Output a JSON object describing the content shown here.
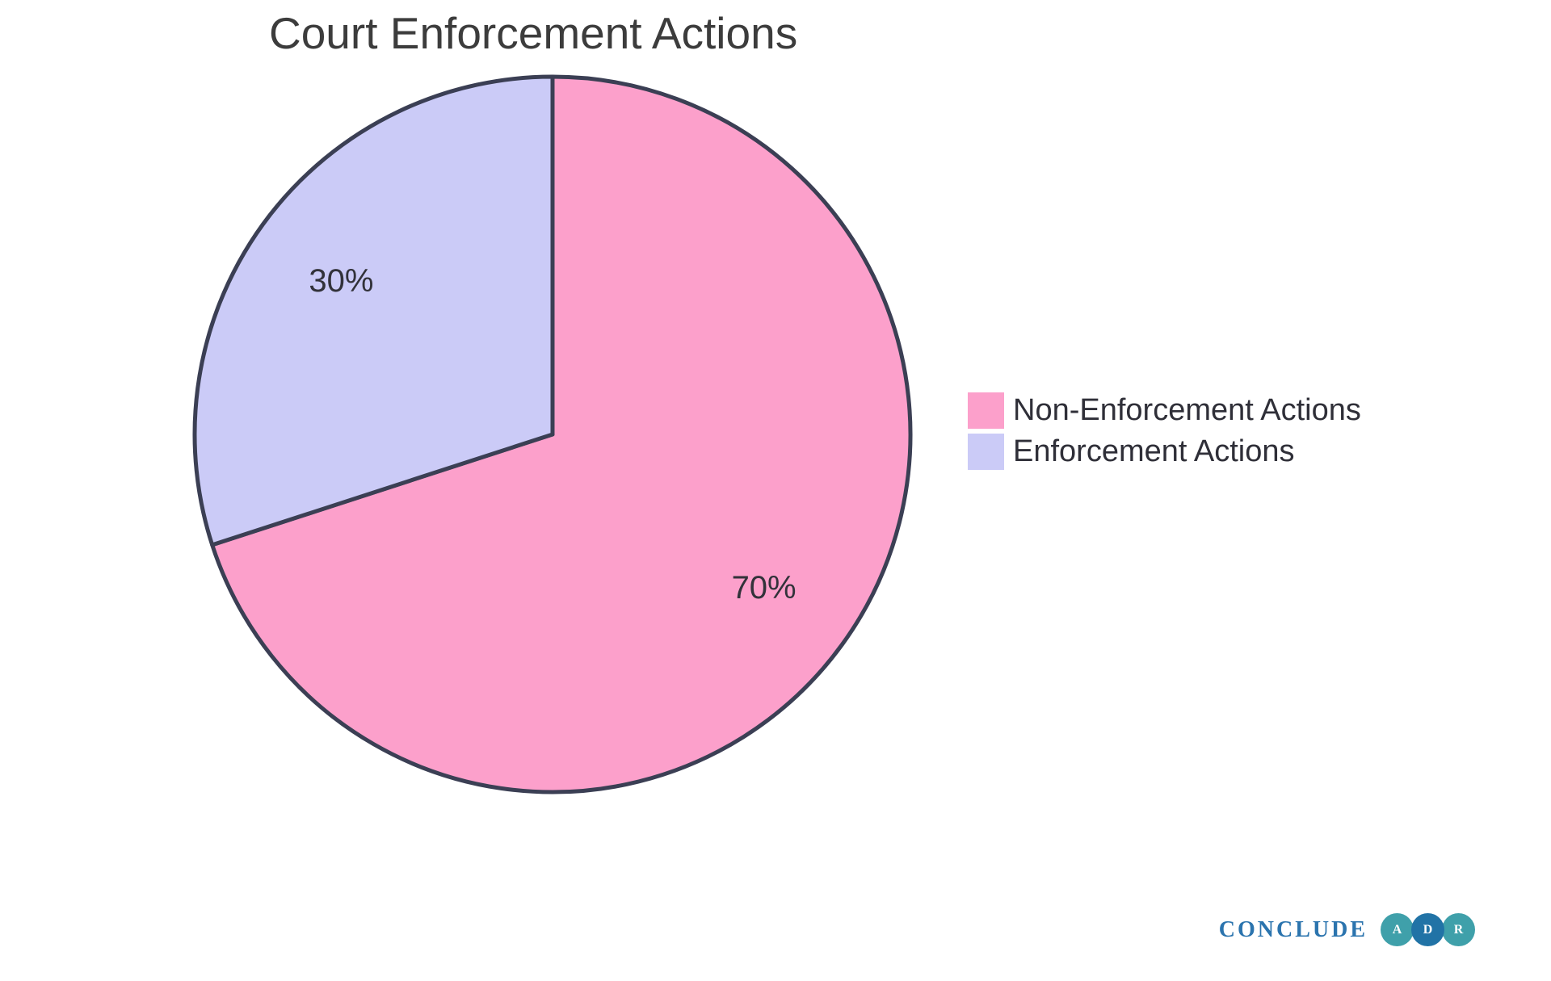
{
  "title": "Court Enforcement Actions",
  "chart_data": {
    "type": "pie",
    "title": "Court Enforcement Actions",
    "labels": [
      "Non-Enforcement Actions",
      "Enforcement Actions"
    ],
    "values": [
      70,
      30
    ],
    "percent_labels": [
      "70%",
      "30%"
    ],
    "colors": [
      "#FCA0CB",
      "#CBCBF7"
    ],
    "outline_color": "#3B3F54",
    "outline_width": 5,
    "start_angle": "top",
    "direction": "clockwise",
    "legend_position": "right",
    "background": "#ffffff"
  },
  "legend": {
    "items": [
      {
        "label": "Non-Enforcement Actions",
        "color": "#FCA0CB"
      },
      {
        "label": "Enforcement Actions",
        "color": "#CBCBF7"
      }
    ]
  },
  "branding": {
    "wordmark": "CONCLUDE",
    "wordmark_color": "#2B74AE",
    "badges": [
      {
        "letter": "A",
        "color": "#3FA0AA"
      },
      {
        "letter": "D",
        "color": "#2173A6"
      },
      {
        "letter": "R",
        "color": "#3FA0AA"
      }
    ]
  }
}
